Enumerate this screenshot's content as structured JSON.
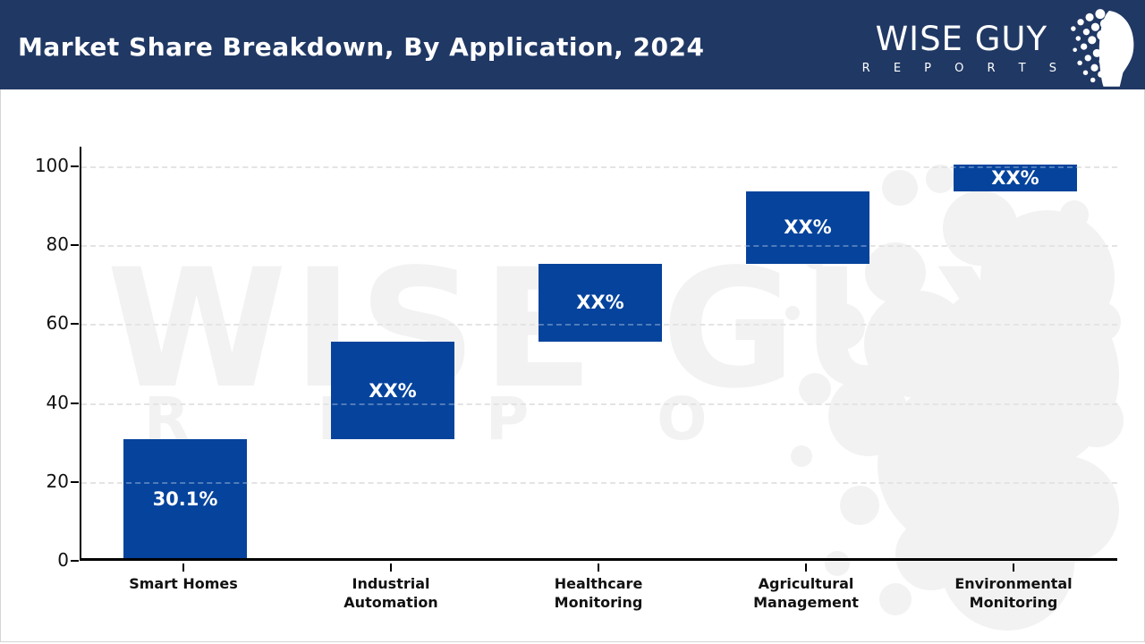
{
  "header": {
    "title": "Market Share Breakdown, By Application, 2024",
    "background_color": "#203864",
    "brand": {
      "line1": "WISE GUY",
      "line2": "R E P O R T S"
    }
  },
  "watermark": {
    "line1": "WISE GUY",
    "line2": "R E P O R T S"
  },
  "chart_data": {
    "type": "bar",
    "subtype": "waterfall",
    "title": "Market Share Breakdown, By Application, 2024",
    "xlabel": "",
    "ylabel": "",
    "ylim": [
      0,
      105
    ],
    "yticks": [
      0,
      20,
      40,
      60,
      80,
      100
    ],
    "grid": "dashed-horizontal",
    "legend": "none",
    "bar_color": "#05439C",
    "bar_label_color": "#ffffff",
    "categories": [
      "Smart Homes",
      "Industrial Automation",
      "Healthcare Monitoring",
      "Agricultural Management",
      "Environmental Monitoring"
    ],
    "segments": [
      {
        "category": "Smart Homes",
        "label_lines": [
          "Smart Homes"
        ],
        "start": 0,
        "end": 30.1,
        "label": "30.1%"
      },
      {
        "category": "Industrial Automation",
        "label_lines": [
          "Industrial",
          "Automation"
        ],
        "start": 30.1,
        "end": 54.9,
        "label": "XX%"
      },
      {
        "category": "Healthcare Monitoring",
        "label_lines": [
          "Healthcare",
          "Monitoring"
        ],
        "start": 54.9,
        "end": 74.7,
        "label": "XX%"
      },
      {
        "category": "Agricultural Management",
        "label_lines": [
          "Agricultural",
          "Management"
        ],
        "start": 74.7,
        "end": 93.0,
        "label": "XX%"
      },
      {
        "category": "Environmental Monitoring",
        "label_lines": [
          "Environmental",
          "Monitoring"
        ],
        "start": 93.0,
        "end": 99.9,
        "label": "XX%"
      }
    ]
  }
}
